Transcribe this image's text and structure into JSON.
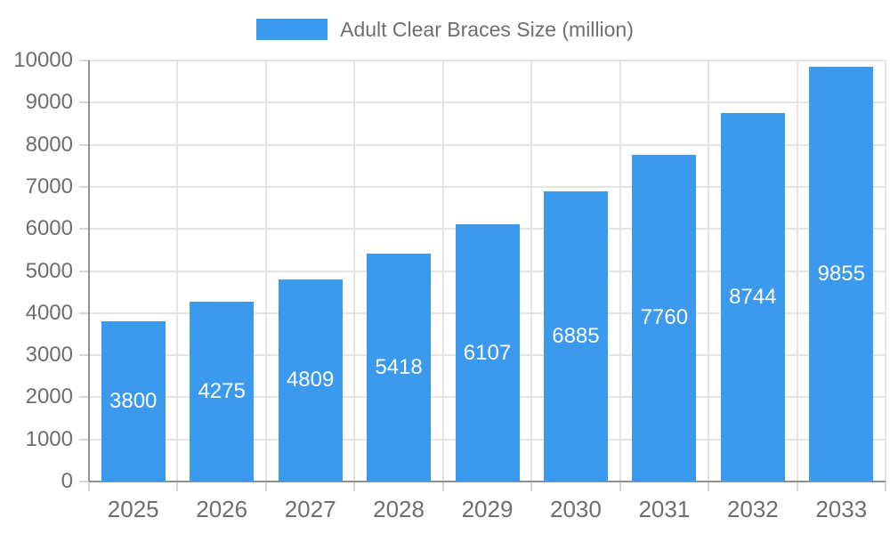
{
  "legend": {
    "label": "Adult Clear Braces Size (million)",
    "swatch_color": "#3b99ee"
  },
  "chart_data": {
    "type": "bar",
    "title": "Adult Clear Braces Size (million)",
    "categories": [
      "2025",
      "2026",
      "2027",
      "2028",
      "2029",
      "2030",
      "2031",
      "2032",
      "2033"
    ],
    "values": [
      3800,
      4275,
      4809,
      5418,
      6107,
      6885,
      7760,
      8744,
      9855
    ],
    "xlabel": "",
    "ylabel": "",
    "ylim": [
      0,
      10000
    ],
    "y_ticks": [
      0,
      1000,
      2000,
      3000,
      4000,
      5000,
      6000,
      7000,
      8000,
      9000,
      10000
    ],
    "grid": true,
    "legend_position": "top",
    "bar_color": "#3b99ee",
    "value_label_color": "#ffffff",
    "axis_line_color": "#909090",
    "gridline_color": "#e4e4e4",
    "text_color": "#6e6e6e"
  }
}
